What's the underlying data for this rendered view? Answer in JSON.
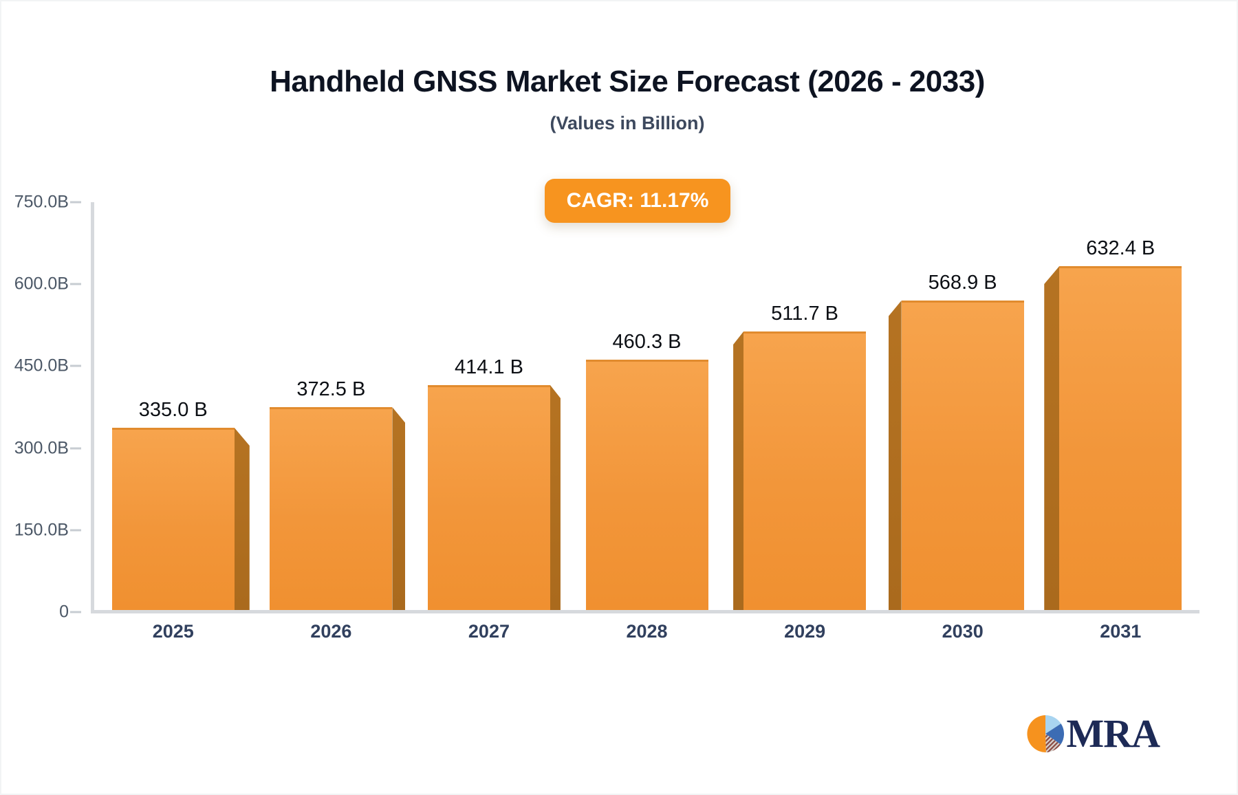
{
  "header": {
    "title": "Handheld GNSS Market Size Forecast (2026 - 2033)",
    "subtitle": "(Values in Billion)",
    "cagr_badge": "CAGR: 11.17%"
  },
  "chart_data": {
    "type": "bar",
    "title": "Handheld GNSS Market Size Forecast (2026 - 2033)",
    "subtitle": "(Values in Billion)",
    "categories": [
      "2025",
      "2026",
      "2027",
      "2028",
      "2029",
      "2030",
      "2031"
    ],
    "values": [
      335.0,
      372.5,
      414.1,
      460.3,
      511.7,
      568.9,
      632.4
    ],
    "value_labels": [
      "335.0 B",
      "372.5 B",
      "414.1 B",
      "460.3 B",
      "511.7 B",
      "568.9 B",
      "632.4 B"
    ],
    "y_ticks": [
      {
        "value": 750,
        "label": "750.0B"
      },
      {
        "value": 600,
        "label": "600.0B"
      },
      {
        "value": 450,
        "label": "450.0B"
      },
      {
        "value": 300,
        "label": "300.0B"
      },
      {
        "value": 150,
        "label": "150.0B"
      },
      {
        "value": 0,
        "label": "0"
      }
    ],
    "ylim": [
      0,
      750
    ],
    "grid": "off",
    "legend": "none",
    "bar_color": "#f29b3d",
    "bar_side_color": "#b07020",
    "bar_top_edge_color": "#e18b2e",
    "value_label_color": "#0c0f14",
    "axis_color": "#d6d9dd"
  },
  "logo": {
    "text": "MRA",
    "text_color": "#1d2a56",
    "pie_orange": "#f6921e",
    "pie_light_blue": "#a8d4f0",
    "pie_dark_blue": "#3c6cb4",
    "pie_hatch_dark": "#8a4a42",
    "pie_hatch_light": "#d8d3cf"
  }
}
